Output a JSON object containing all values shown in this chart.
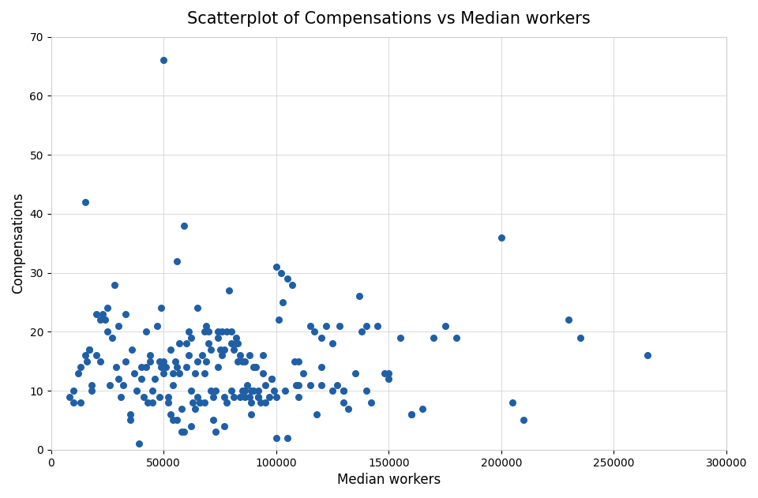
{
  "title": "Scatterplot of Compensations vs Median workers",
  "xlabel": "Median workers",
  "ylabel": "Compensations",
  "dot_color": "#1f5fa6",
  "dot_size": 30,
  "xlim": [
    0,
    300000
  ],
  "ylim": [
    0,
    70
  ],
  "xticks": [
    0,
    50000,
    100000,
    150000,
    200000,
    250000,
    300000
  ],
  "yticks": [
    0,
    10,
    20,
    30,
    40,
    50,
    60,
    70
  ],
  "x": [
    8000,
    10000,
    12000,
    13000,
    15000,
    16000,
    17000,
    18000,
    20000,
    22000,
    23000,
    24000,
    25000,
    26000,
    28000,
    29000,
    30000,
    31000,
    32000,
    33000,
    35000,
    36000,
    37000,
    38000,
    40000,
    41000,
    42000,
    43000,
    44000,
    45000,
    46000,
    47000,
    48000,
    49000,
    50000,
    51000,
    52000,
    53000,
    54000,
    55000,
    56000,
    57000,
    58000,
    59000,
    60000,
    61000,
    62000,
    63000,
    64000,
    65000,
    66000,
    67000,
    68000,
    69000,
    70000,
    71000,
    72000,
    73000,
    74000,
    75000,
    76000,
    77000,
    78000,
    79000,
    80000,
    81000,
    82000,
    83000,
    84000,
    85000,
    86000,
    87000,
    88000,
    89000,
    90000,
    91000,
    92000,
    93000,
    94000,
    95000,
    97000,
    98000,
    100000,
    101000,
    102000,
    103000,
    105000,
    107000,
    108000,
    110000,
    112000,
    115000,
    117000,
    120000,
    122000,
    125000,
    127000,
    130000,
    132000,
    135000,
    137000,
    140000,
    142000,
    145000,
    150000,
    155000,
    160000,
    165000,
    170000,
    175000,
    180000,
    200000,
    205000,
    210000,
    230000,
    235000,
    265000,
    10000,
    13000,
    17000,
    20000,
    25000,
    30000,
    35000,
    40000,
    42000,
    45000,
    48000,
    50000,
    52000,
    54000,
    56000,
    58000,
    60000,
    62000,
    64000,
    66000,
    68000,
    70000,
    72000,
    74000,
    76000,
    78000,
    80000,
    82000,
    84000,
    86000,
    88000,
    90000,
    92000,
    95000,
    98000,
    100000,
    105000,
    110000,
    115000,
    120000,
    125000,
    130000,
    140000,
    150000,
    160000,
    15000,
    18000,
    22000,
    27000,
    33000,
    39000,
    44000,
    49000,
    54000,
    57000,
    61000,
    65000,
    69000,
    73000,
    77000,
    81000,
    85000,
    89000,
    94000,
    99000,
    104000,
    109000,
    118000,
    128000,
    138000,
    148000,
    50000,
    53000,
    56000,
    59000,
    62000,
    65000,
    68000,
    71000,
    74000,
    77000,
    80000,
    83000,
    86000,
    89000,
    92000,
    100000,
    110000,
    120000,
    130000
  ],
  "y": [
    9,
    10,
    13,
    8,
    16,
    15,
    17,
    10,
    16,
    22,
    23,
    22,
    20,
    11,
    28,
    14,
    12,
    9,
    11,
    15,
    5,
    17,
    13,
    10,
    14,
    9,
    20,
    8,
    16,
    10,
    12,
    21,
    15,
    14,
    15,
    14,
    9,
    17,
    13,
    15,
    14,
    13,
    7,
    3,
    18,
    20,
    19,
    8,
    13,
    15,
    8,
    16,
    20,
    21,
    18,
    17,
    9,
    10,
    19,
    17,
    16,
    9,
    8,
    27,
    10,
    17,
    19,
    18,
    16,
    15,
    9,
    11,
    16,
    8,
    10,
    14,
    9,
    8,
    13,
    8,
    9,
    12,
    9,
    22,
    30,
    25,
    2,
    28,
    15,
    11,
    13,
    21,
    20,
    19,
    21,
    10,
    11,
    10,
    7,
    13,
    26,
    10,
    8,
    21,
    13,
    19,
    6,
    7,
    19,
    21,
    19,
    36,
    8,
    5,
    22,
    19,
    16,
    8,
    14,
    17,
    23,
    24,
    21,
    6,
    12,
    14,
    8,
    9,
    13,
    8,
    11,
    5,
    3,
    14,
    10,
    7,
    8,
    8,
    20,
    5,
    20,
    20,
    20,
    18,
    18,
    9,
    15,
    9,
    14,
    9,
    11,
    12,
    31,
    29,
    15,
    11,
    14,
    18,
    10,
    21,
    12,
    6,
    42,
    11,
    15,
    19,
    23,
    1,
    15,
    24,
    5,
    18,
    16,
    24,
    15,
    3,
    4,
    9,
    10,
    10,
    16,
    10,
    10,
    11,
    6,
    21,
    20,
    13,
    66,
    6,
    32,
    38,
    4,
    9,
    13,
    10,
    14,
    17,
    20,
    15,
    10,
    6,
    10,
    2,
    9,
    11,
    8
  ]
}
